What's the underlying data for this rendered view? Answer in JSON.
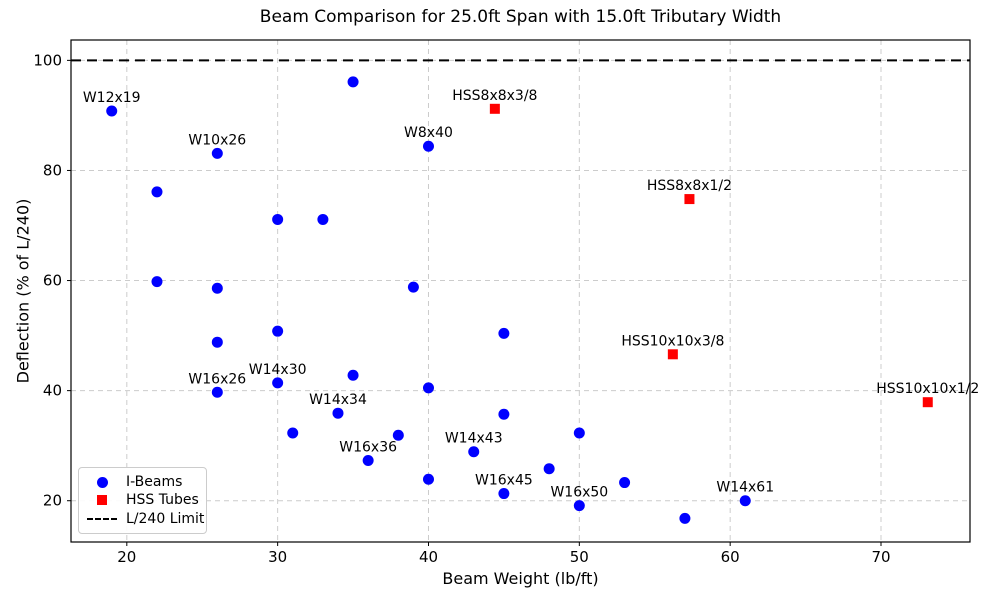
{
  "chart_data": {
    "type": "scatter",
    "title": "Beam Comparison for 25.0ft Span with 15.0ft Tributary Width",
    "xlabel": "Beam Weight (lb/ft)",
    "ylabel": "Deflection (% of L/240)",
    "xlim": [
      16.3,
      75.9
    ],
    "ylim": [
      12.5,
      103.7
    ],
    "xticks": [
      20,
      30,
      40,
      50,
      60,
      70
    ],
    "yticks": [
      20,
      40,
      60,
      80,
      100
    ],
    "grid": true,
    "grid_color": "#cccccc",
    "legend_position": "lower-left",
    "limit_line": {
      "y": 100,
      "label": "L/240 Limit",
      "color": "#000000",
      "style": "dashed"
    },
    "series": [
      {
        "name": "I-Beams",
        "marker": "circle",
        "color": "#0000ff",
        "points": [
          {
            "x": 19,
            "y": 90.8,
            "label": "W12x19"
          },
          {
            "x": 22,
            "y": 76.1
          },
          {
            "x": 22,
            "y": 59.8
          },
          {
            "x": 26,
            "y": 83.1,
            "label": "W10x26"
          },
          {
            "x": 26,
            "y": 58.6
          },
          {
            "x": 26,
            "y": 48.8
          },
          {
            "x": 26,
            "y": 39.7,
            "label": "W16x26"
          },
          {
            "x": 30,
            "y": 71.1
          },
          {
            "x": 30,
            "y": 50.8
          },
          {
            "x": 30,
            "y": 41.4,
            "label": "W14x30"
          },
          {
            "x": 31,
            "y": 32.3
          },
          {
            "x": 33,
            "y": 71.1
          },
          {
            "x": 34,
            "y": 35.9,
            "label": "W14x34"
          },
          {
            "x": 35,
            "y": 96.1
          },
          {
            "x": 35,
            "y": 42.8
          },
          {
            "x": 36,
            "y": 27.3,
            "label": "W16x36"
          },
          {
            "x": 38,
            "y": 31.9
          },
          {
            "x": 39,
            "y": 58.8
          },
          {
            "x": 40,
            "y": 84.4,
            "label": "W8x40"
          },
          {
            "x": 40,
            "y": 40.5
          },
          {
            "x": 40,
            "y": 23.9
          },
          {
            "x": 43,
            "y": 28.9,
            "label": "W14x43"
          },
          {
            "x": 45,
            "y": 50.4
          },
          {
            "x": 45,
            "y": 35.7
          },
          {
            "x": 45,
            "y": 21.3,
            "label": "W16x45"
          },
          {
            "x": 48,
            "y": 25.8
          },
          {
            "x": 50,
            "y": 32.3
          },
          {
            "x": 50,
            "y": 19.1,
            "label": "W16x50"
          },
          {
            "x": 53,
            "y": 23.3
          },
          {
            "x": 57,
            "y": 16.8
          },
          {
            "x": 61,
            "y": 20.0,
            "label": "W14x61"
          }
        ]
      },
      {
        "name": "HSS Tubes",
        "marker": "square",
        "color": "#ff0000",
        "points": [
          {
            "x": 44.4,
            "y": 91.2,
            "label": "HSS8x8x3/8"
          },
          {
            "x": 57.3,
            "y": 74.8,
            "label": "HSS8x8x1/2"
          },
          {
            "x": 56.2,
            "y": 46.6,
            "label": "HSS10x10x3/8"
          },
          {
            "x": 73.1,
            "y": 37.9,
            "label": "HSS10x10x1/2"
          }
        ]
      }
    ]
  }
}
